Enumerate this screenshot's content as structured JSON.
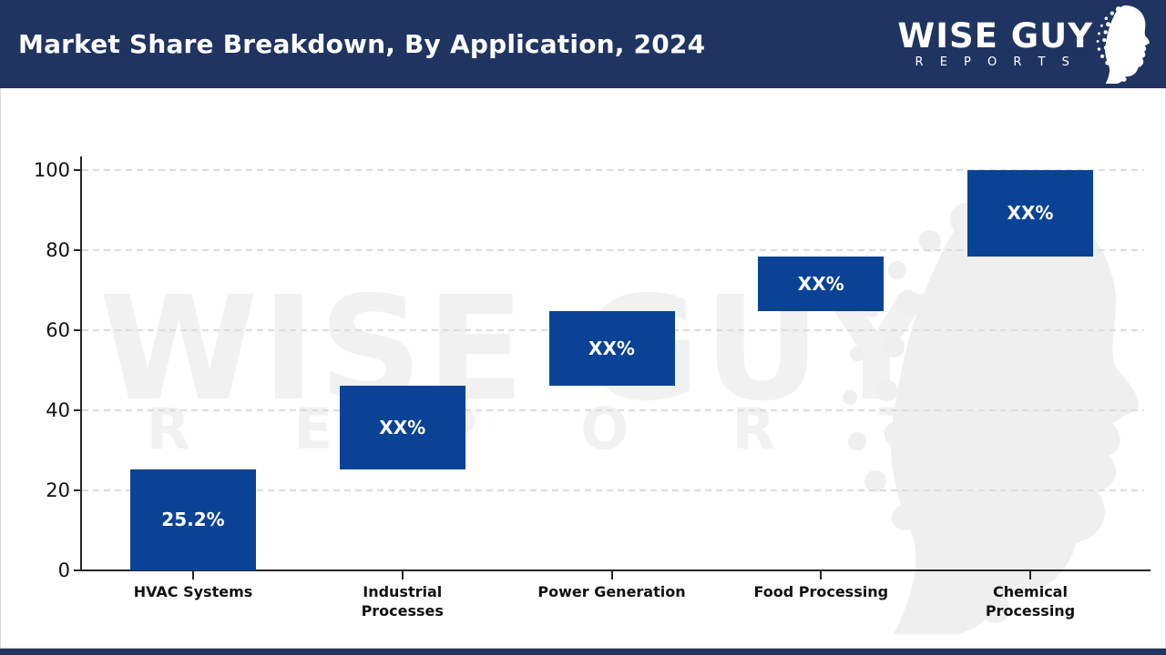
{
  "header": {
    "title": "Market Share Breakdown, By Application, 2024",
    "logo": {
      "brand_line1": "WISE GUY",
      "brand_line2": "R E P O R T S"
    }
  },
  "watermark": {
    "line1": "WISE GUY",
    "line2": "R E P O R T S"
  },
  "chart_data": {
    "type": "bar",
    "subtype": "waterfall",
    "title": "Market Share Breakdown, By Application, 2024",
    "categories": [
      "HVAC Systems",
      "Industrial Processes",
      "Power Generation",
      "Food Processing",
      "Chemical Processing"
    ],
    "category_label_lines": [
      [
        "HVAC Systems"
      ],
      [
        "Industrial",
        "Processes"
      ],
      [
        "Power Generation"
      ],
      [
        "Food Processing"
      ],
      [
        "Chemical",
        "Processing"
      ]
    ],
    "series": [
      {
        "name": "Market share (%)",
        "segments": [
          {
            "category": "HVAC Systems",
            "start": 0,
            "end": 25.2,
            "label": "25.2%"
          },
          {
            "category": "Industrial Processes",
            "start": 25.2,
            "end": 46.0,
            "label": "XX%"
          },
          {
            "category": "Power Generation",
            "start": 46.0,
            "end": 64.6,
            "label": "XX%"
          },
          {
            "category": "Food Processing",
            "start": 64.6,
            "end": 78.3,
            "label": "XX%"
          },
          {
            "category": "Chemical Processing",
            "start": 78.3,
            "end": 100,
            "label": "XX%"
          }
        ]
      }
    ],
    "xlabel": "",
    "ylabel": "",
    "ylim": [
      0,
      100
    ],
    "yticks": [
      0,
      20,
      40,
      60,
      80,
      100
    ],
    "grid": "horizontal dashed",
    "legend": "none",
    "bar_color": "#0a4296",
    "bar_label_color": "#ffffff",
    "axis_color": "#262626"
  }
}
